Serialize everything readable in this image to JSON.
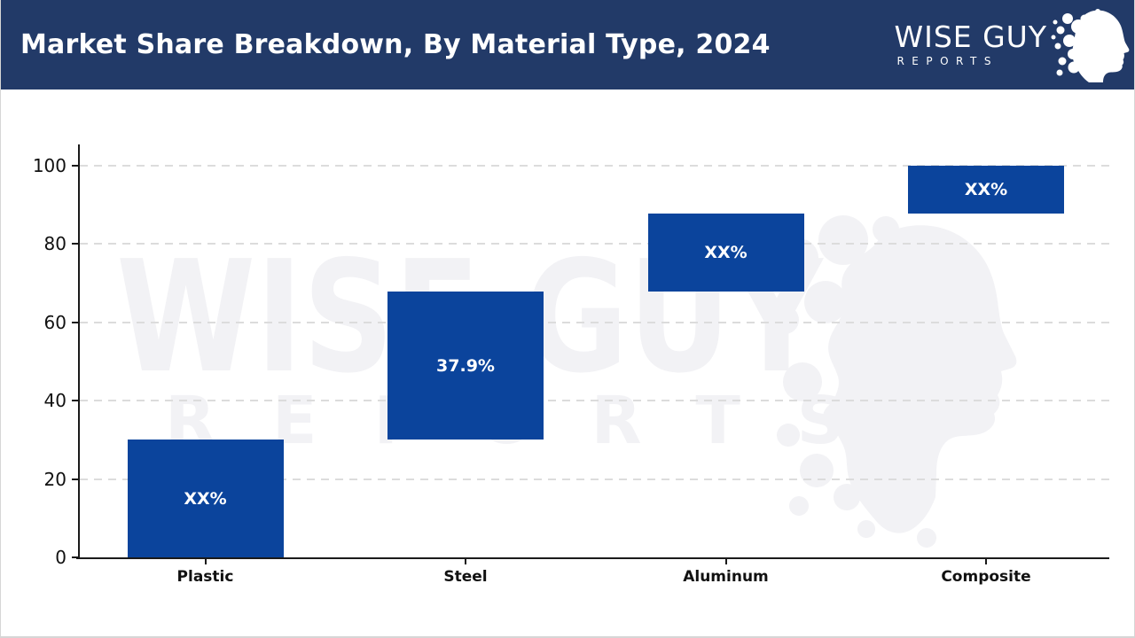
{
  "header": {
    "title": "Market Share Breakdown, By Material Type, 2024",
    "logo": {
      "line1": "WISE GUY",
      "line2": "REPORTS"
    }
  },
  "watermark": {
    "line1": "WISE GUY",
    "line2": "REPORTS"
  },
  "colors": {
    "header_bg": "#223A68",
    "bar": "#0B449C",
    "grid": "#DCDCDC",
    "axis": "#1A1A1A",
    "watermark": "#F2F2F5",
    "bar_label": "#FFFFFF"
  },
  "chart_data": {
    "type": "bar",
    "subtype": "waterfall-floating-bars",
    "title": "Market Share Breakdown, By Material Type, 2024",
    "categories": [
      "Plastic",
      "Steel",
      "Aluminum",
      "Composite"
    ],
    "bars": [
      {
        "category": "Plastic",
        "start": 0,
        "end": 30,
        "height": 30,
        "label": "XX%"
      },
      {
        "category": "Steel",
        "start": 30,
        "end": 67.9,
        "height": 37.9,
        "label": "37.9%"
      },
      {
        "category": "Aluminum",
        "start": 67.9,
        "end": 87.7,
        "height": 19.8,
        "label": "XX%"
      },
      {
        "category": "Composite",
        "start": 87.7,
        "end": 100,
        "height": 12.3,
        "label": "XX%"
      }
    ],
    "yticks": [
      0,
      20,
      40,
      60,
      80,
      100
    ],
    "ylim": [
      0,
      105
    ],
    "xlabel": "",
    "ylabel": "",
    "grid": "horizontal-dashed",
    "legend": "none"
  }
}
